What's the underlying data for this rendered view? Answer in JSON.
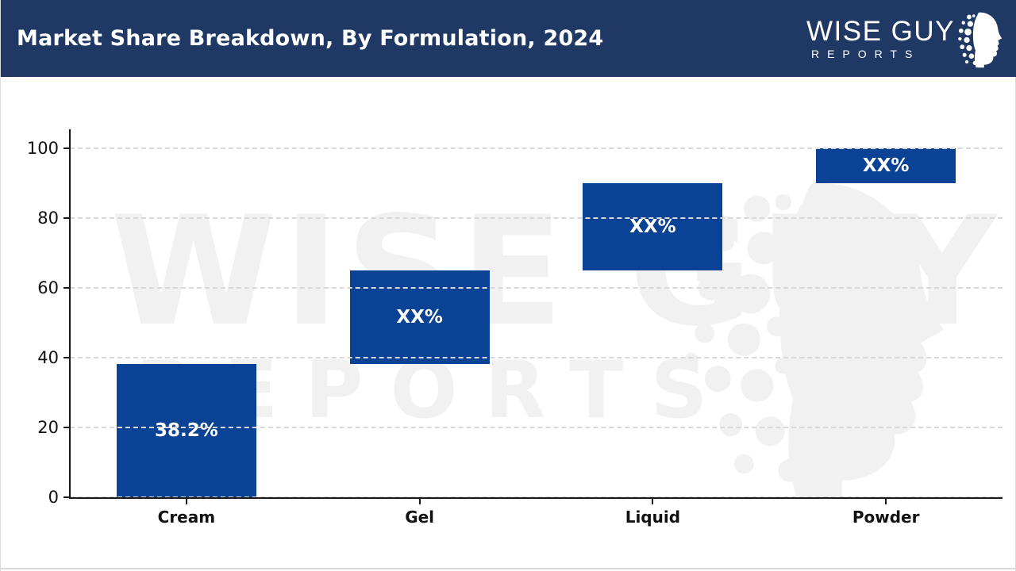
{
  "header": {
    "title": "Market Share Breakdown, By Formulation, 2024",
    "bg_color": "#203864",
    "logo": {
      "line1": "WISE GUY",
      "line2": "REPORTS"
    }
  },
  "watermark": {
    "line1": "WISE GUY",
    "line2": "REPORTS"
  },
  "chart_data": {
    "type": "bar",
    "subtype": "waterfall",
    "title": "Market Share Breakdown, By Formulation, 2024",
    "xlabel": "",
    "ylabel": "",
    "categories": [
      "Cream",
      "Gel",
      "Liquid",
      "Powder"
    ],
    "segments": [
      {
        "category": "Cream",
        "start": 0,
        "end": 38.2,
        "label": "38.2%"
      },
      {
        "category": "Gel",
        "start": 38.2,
        "end": 65,
        "label": "XX%"
      },
      {
        "category": "Liquid",
        "start": 65,
        "end": 90,
        "label": "XX%"
      },
      {
        "category": "Powder",
        "start": 90,
        "end": 100,
        "label": "XX%"
      }
    ],
    "y_ticks": [
      0,
      20,
      40,
      60,
      80,
      100
    ],
    "ylim": [
      0,
      105.5
    ],
    "grid": "horizontal dashed, drawn over bars",
    "legend": "none",
    "bar_color": "#0a4296",
    "bar_label_color": "#ffffff",
    "grid_color": "#d8d8d8",
    "axis_color": "#1a1a1a"
  }
}
